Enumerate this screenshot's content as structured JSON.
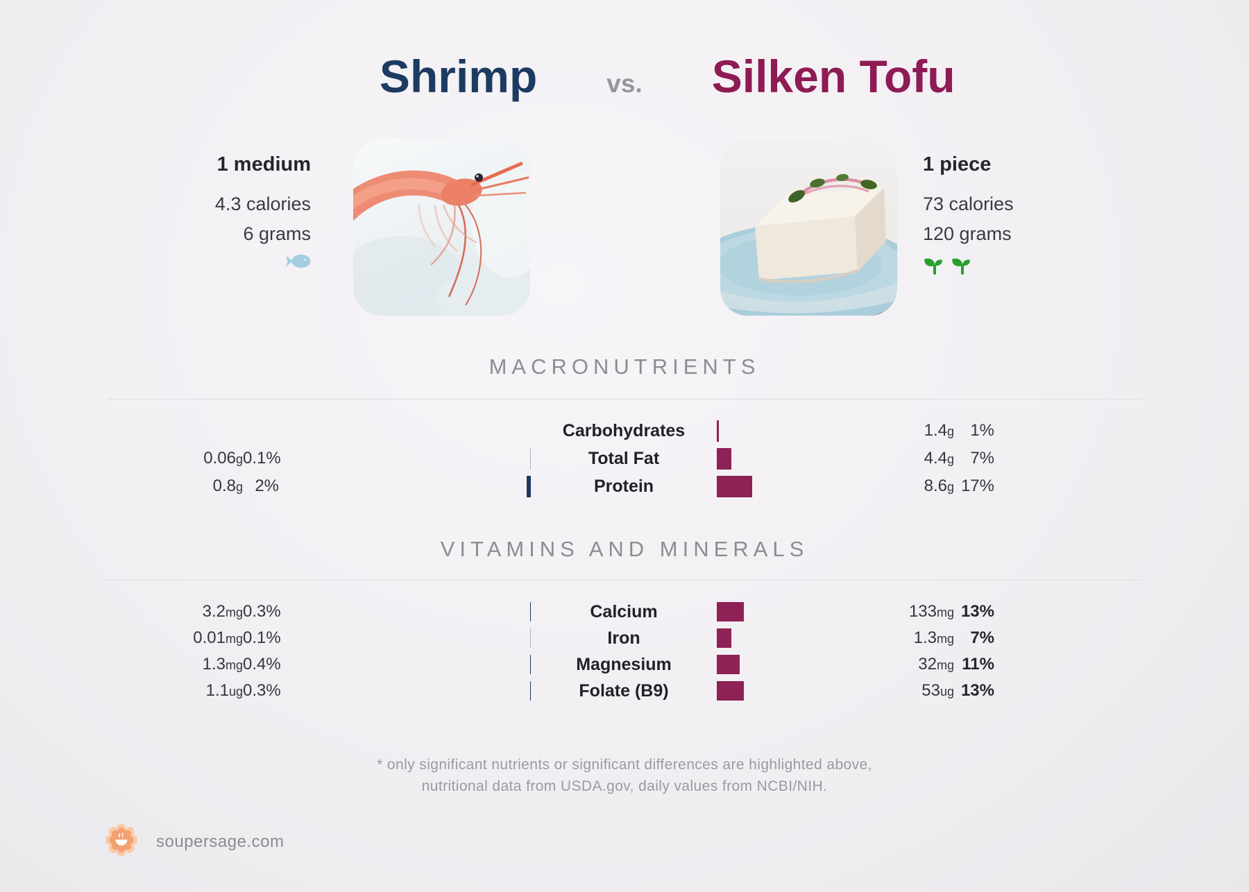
{
  "title": {
    "food_a": "Shrimp",
    "separator": "vs.",
    "food_b": "Silken Tofu"
  },
  "colors": {
    "food_a_title": "#1d3b61",
    "food_b_title": "#8e1b53",
    "bar_shrimp": "#1c3a5e",
    "bar_tofu": "#8e2156",
    "background": "#f1eff2"
  },
  "food_a_info": {
    "serving": "1 medium",
    "calories": "4.3 calories",
    "weight": "6 grams",
    "icon": "fish-icon"
  },
  "food_b_info": {
    "serving": "1 piece",
    "calories": "73 calories",
    "weight": "120 grams",
    "icon": "seedling-icons"
  },
  "macronutrients": {
    "heading": "MACRONUTRIENTS",
    "rows": [
      {
        "label": "Carbohydrates",
        "left": {
          "amount": "",
          "unit": "",
          "pct_text": "",
          "pct": 0
        },
        "right": {
          "amount": "1.4",
          "unit": "g",
          "pct_text": "1%",
          "pct": 1
        }
      },
      {
        "label": "Total Fat",
        "left": {
          "amount": "0.06",
          "unit": "g",
          "pct_text": "0.1%",
          "pct": 0.1
        },
        "right": {
          "amount": "4.4",
          "unit": "g",
          "pct_text": "7%",
          "pct": 7
        }
      },
      {
        "label": "Protein",
        "left": {
          "amount": "0.8",
          "unit": "g",
          "pct_text": "2%",
          "pct": 2
        },
        "right": {
          "amount": "8.6",
          "unit": "g",
          "pct_text": "17%",
          "pct": 17
        }
      }
    ]
  },
  "vitamins": {
    "heading": "VITAMINS AND MINERALS",
    "rows": [
      {
        "label": "Calcium",
        "left": {
          "amount": "3.2",
          "unit": "mg",
          "pct_text": "0.3%",
          "pct": 0.3
        },
        "right": {
          "amount": "133",
          "unit": "mg",
          "pct_text": "13%",
          "pct": 13
        }
      },
      {
        "label": "Iron",
        "left": {
          "amount": "0.01",
          "unit": "mg",
          "pct_text": "0.1%",
          "pct": 0.1
        },
        "right": {
          "amount": "1.3",
          "unit": "mg",
          "pct_text": "7%",
          "pct": 7
        }
      },
      {
        "label": "Magnesium",
        "left": {
          "amount": "1.3",
          "unit": "mg",
          "pct_text": "0.4%",
          "pct": 0.4
        },
        "right": {
          "amount": "32",
          "unit": "mg",
          "pct_text": "11%",
          "pct": 11
        }
      },
      {
        "label": "Folate (B9)",
        "left": {
          "amount": "1.1",
          "unit": "ug",
          "pct_text": "0.3%",
          "pct": 0.3
        },
        "right": {
          "amount": "53",
          "unit": "ug",
          "pct_text": "13%",
          "pct": 13
        }
      }
    ]
  },
  "footer": {
    "line1": "* only significant nutrients or significant differences are highlighted above,",
    "line2": "nutritional data from USDA.gov, daily values from NCBI/NIH."
  },
  "brand": {
    "site": "soupersage.com"
  },
  "chart_data": [
    {
      "type": "bar",
      "title": "Macronutrients (% daily value)",
      "categories": [
        "Carbohydrates",
        "Total Fat",
        "Protein"
      ],
      "series": [
        {
          "name": "Shrimp (1 medium, 6 grams, 4.3 calories)",
          "values": [
            0,
            0.1,
            2
          ],
          "amounts": [
            "",
            "0.06g",
            "0.8g"
          ],
          "color": "#1c3a5e"
        },
        {
          "name": "Silken Tofu (1 piece, 120 grams, 73 calories)",
          "values": [
            1,
            7,
            17
          ],
          "amounts": [
            "1.4g",
            "4.4g",
            "8.6g"
          ],
          "color": "#8e2156"
        }
      ],
      "orientation": "horizontal-diverging",
      "grid": false,
      "legend_position": "none"
    },
    {
      "type": "bar",
      "title": "Vitamins and Minerals (% daily value)",
      "categories": [
        "Calcium",
        "Iron",
        "Magnesium",
        "Folate (B9)"
      ],
      "series": [
        {
          "name": "Shrimp",
          "values": [
            0.3,
            0.1,
            0.4,
            0.3
          ],
          "amounts": [
            "3.2mg",
            "0.01mg",
            "1.3mg",
            "1.1ug"
          ],
          "color": "#1c3a5e"
        },
        {
          "name": "Silken Tofu",
          "values": [
            13,
            7,
            11,
            13
          ],
          "amounts": [
            "133mg",
            "1.3mg",
            "32mg",
            "53ug"
          ],
          "color": "#8e2156"
        }
      ],
      "orientation": "horizontal-diverging",
      "grid": false,
      "legend_position": "none"
    }
  ]
}
